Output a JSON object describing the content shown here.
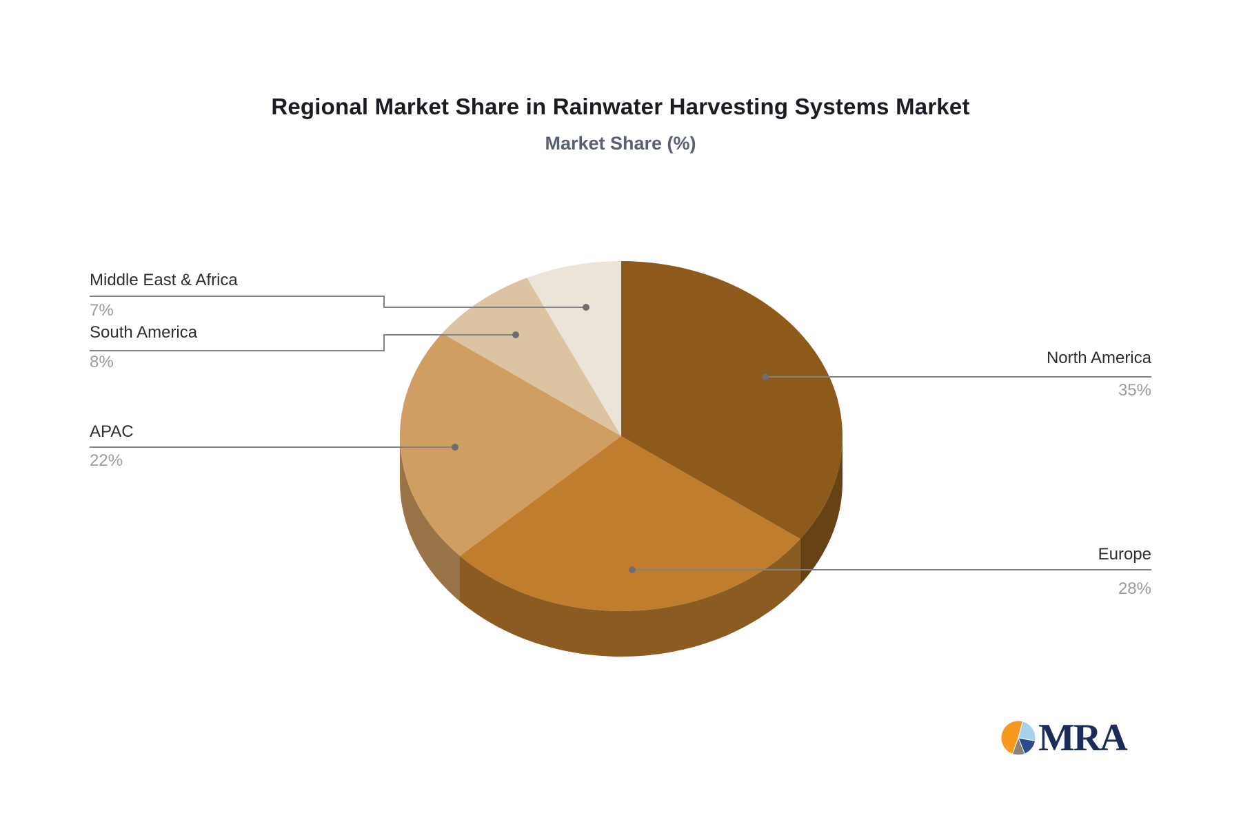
{
  "title": "Regional Market Share in Rainwater Harvesting Systems Market",
  "subtitle": "Market Share (%)",
  "chart_data": {
    "type": "pie",
    "title": "Regional Market Share in Rainwater Harvesting Systems Market",
    "subtitle": "Market Share (%)",
    "unit": "percent",
    "effect": "3d",
    "start_angle_deg": 0,
    "direction": "clockwise",
    "legend_position": "callout-labels",
    "categories": [
      "North America",
      "Europe",
      "APAC",
      "South America",
      "Middle East & Africa"
    ],
    "values": [
      35,
      28,
      22,
      8,
      7
    ],
    "data_labels": [
      "35%",
      "28%",
      "22%",
      "8%",
      "7%"
    ],
    "slice_colors": [
      "#8d5a1b",
      "#c07d2e",
      "#d09e63",
      "#dcc4a2",
      "#ece4d8"
    ]
  },
  "callouts": [
    {
      "name": "North America",
      "pct": "35%"
    },
    {
      "name": "Europe",
      "pct": "28%"
    },
    {
      "name": "APAC",
      "pct": "22%"
    },
    {
      "name": "South America",
      "pct": "8%"
    },
    {
      "name": "Middle East & Africa",
      "pct": "7%"
    }
  ],
  "colors": {
    "background": "#ffffff",
    "title": "#191c22",
    "subtitle": "#59616e",
    "label_text": "#2d2d2d",
    "percent_text": "#9b9b9b",
    "leader_line": "#828282",
    "leader_dot": "#6e6e6e"
  },
  "logo": {
    "text": "MRA",
    "text_color": "#1c2b57",
    "icon_colors": {
      "orange": "#f6991e",
      "light_blue": "#a6d2ee",
      "navy": "#2d4b8b",
      "gray": "#8b8277"
    }
  }
}
